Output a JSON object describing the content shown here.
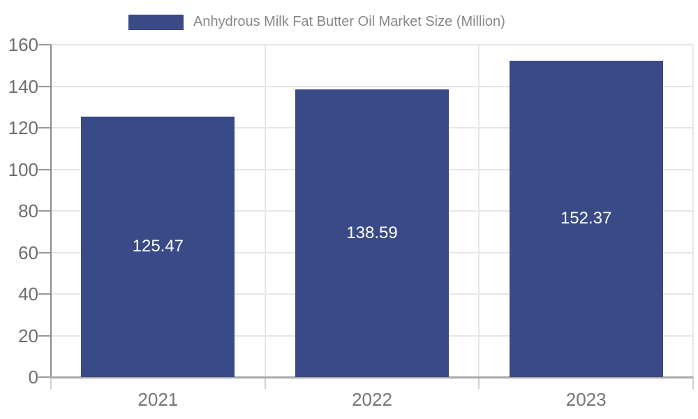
{
  "chart_data": {
    "type": "bar",
    "title": "Anhydrous Milk Fat Butter Oil Market Size (Million)",
    "legend": {
      "position": "top",
      "label": "Anhydrous Milk Fat Butter Oil Market Size (Million)"
    },
    "categories": [
      "2021",
      "2022",
      "2023"
    ],
    "series": [
      {
        "name": "Anhydrous Milk Fat Butter Oil Market Size (Million)",
        "values": [
          125.47,
          138.59,
          152.37
        ]
      }
    ],
    "value_labels": [
      "125.47",
      "138.59",
      "152.37"
    ],
    "xlabel": "",
    "ylabel": "",
    "ylim": [
      0,
      160
    ],
    "yticks": [
      0,
      20,
      40,
      60,
      80,
      100,
      120,
      140,
      160
    ],
    "grid": true,
    "colors": {
      "bar": "#3A4A87",
      "value_label_text": "#ffffff",
      "legend_text": "#878787",
      "tick_label_text": "#6d6d6d",
      "x_label_text": "#757575",
      "gridline": "#e6e6e6",
      "y_axis": "#8c8c8c",
      "x_axis": "#a8a8a8",
      "background": "#ffffff"
    }
  }
}
